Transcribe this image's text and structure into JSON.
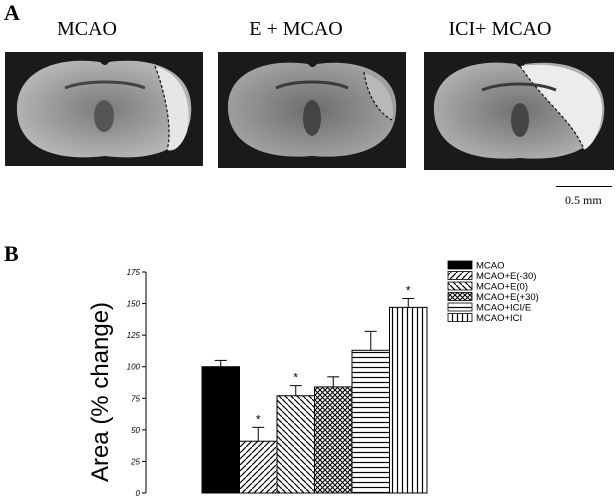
{
  "panel_a": {
    "letter": "A",
    "slices": [
      {
        "label": "MCAO"
      },
      {
        "label": "E + MCAO"
      },
      {
        "label": "ICI+ MCAO"
      }
    ],
    "scale_bar": "0.5 mm"
  },
  "panel_b": {
    "letter": "B"
  },
  "chart_data": {
    "type": "bar",
    "title": "",
    "xlabel": "",
    "ylabel": "Area (% change)",
    "ylim": [
      0,
      175
    ],
    "yticks": [
      0,
      25,
      50,
      75,
      100,
      125,
      150,
      175
    ],
    "grid": false,
    "legend_position": "top-right",
    "categories": [
      "MCAO",
      "MCAO+E(-30)",
      "MCAO+E(0)",
      "MCAO+E(+30)",
      "MCAO+ICI/E",
      "MCAO+ICI"
    ],
    "values": [
      100,
      41,
      77,
      84,
      113,
      147
    ],
    "errors": [
      5,
      11,
      8,
      8,
      15,
      7
    ],
    "significant": [
      "",
      "*",
      "*",
      "",
      "",
      "*"
    ],
    "patterns": [
      "solid",
      "diag-up",
      "diag-down",
      "crosshatch",
      "horizontal",
      "vertical"
    ]
  }
}
